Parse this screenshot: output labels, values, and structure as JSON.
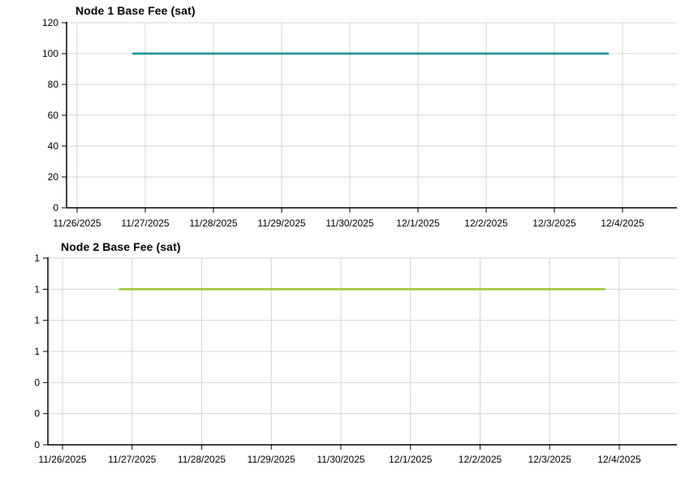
{
  "page": {
    "background": "#ffffff"
  },
  "colors": {
    "grid": "#d4d4d4",
    "axis": "#000000",
    "text": "#000000",
    "node1_line": "#1d9999",
    "node2_line": "#9cc93c"
  },
  "chart_data": [
    {
      "id": "node1",
      "type": "line",
      "title": "Node 1 Base Fee (sat)",
      "xlabel": "",
      "ylabel": "",
      "ylim": [
        0,
        120
      ],
      "grid": true,
      "legend_position": "none",
      "x_tick_labels": [
        "11/26/2025",
        "11/27/2025",
        "11/28/2025",
        "11/29/2025",
        "11/30/2025",
        "12/1/2025",
        "12/2/2025",
        "12/3/2025",
        "12/4/2025"
      ],
      "y_tick_labels": [
        "120",
        "100",
        "80",
        "60",
        "40",
        "20",
        "0"
      ],
      "series": [
        {
          "name": "Node 1 base fee",
          "value_sat": 100,
          "shape": "constant-horizontal-line",
          "color": "#1d9999",
          "starts_at_day_offset": 0.81,
          "ends_at_day_offset": 7.8
        }
      ]
    },
    {
      "id": "node2",
      "type": "line",
      "title": "Node 2 Base Fee (sat)",
      "xlabel": "",
      "ylabel": "",
      "ylim": [
        0,
        1.2
      ],
      "grid": true,
      "legend_position": "none",
      "x_tick_labels": [
        "11/26/2025",
        "11/27/2025",
        "11/28/2025",
        "11/29/2025",
        "11/30/2025",
        "12/1/2025",
        "12/2/2025",
        "12/3/2025",
        "12/4/2025"
      ],
      "y_tick_labels": [
        "1",
        "1",
        "1",
        "1",
        "0",
        "0",
        "0"
      ],
      "series": [
        {
          "name": "Node 2 base fee",
          "value_sat": 1,
          "shape": "constant-horizontal-line",
          "color": "#9cc93c",
          "starts_at_day_offset": 0.81,
          "ends_at_day_offset": 7.8
        }
      ]
    }
  ]
}
